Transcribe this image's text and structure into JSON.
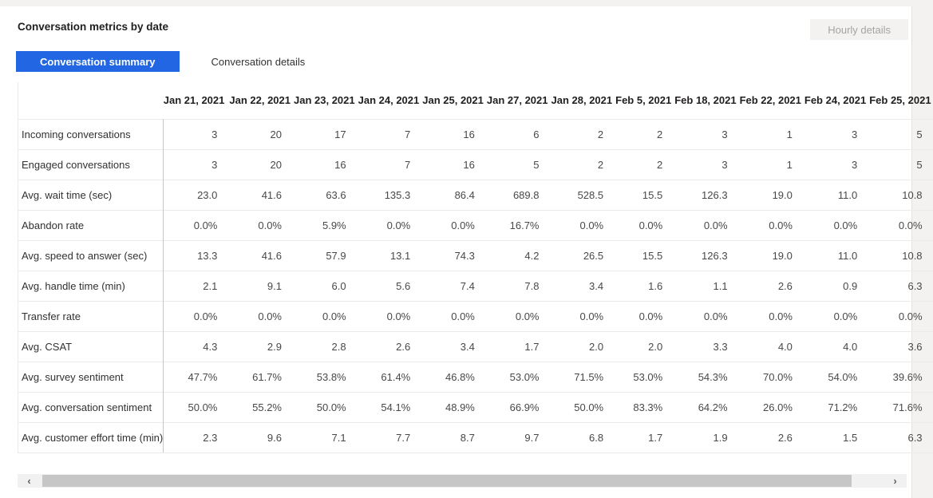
{
  "header": {
    "title": "Conversation metrics by date",
    "hourly_details_label": "Hourly details",
    "tabs": [
      {
        "id": "conversation-summary",
        "label": "Conversation summary",
        "active": true
      },
      {
        "id": "conversation-details",
        "label": "Conversation details",
        "active": false
      }
    ]
  },
  "colors": {
    "accent": "#2266e3",
    "disabled_button_bg": "#f3f2f1",
    "disabled_button_text": "#a6a4a2",
    "row_border": "#edebe9",
    "frozen_divider": "#c8c6c4"
  },
  "icons": {
    "scroll_left": "‹",
    "scroll_right": "›"
  },
  "table": {
    "date_columns": [
      "Jan 21, 2021",
      "Jan 22, 2021",
      "Jan 23, 2021",
      "Jan 24, 2021",
      "Jan 25, 2021",
      "Jan 27, 2021",
      "Jan 28, 2021",
      "Feb 5, 2021",
      "Feb 18, 2021",
      "Feb 22, 2021",
      "Feb 24, 2021",
      "Feb 25, 2021"
    ],
    "rows": [
      {
        "label": "Incoming conversations",
        "values": [
          "3",
          "20",
          "17",
          "7",
          "16",
          "6",
          "2",
          "2",
          "3",
          "1",
          "3",
          "5"
        ]
      },
      {
        "label": "Engaged conversations",
        "values": [
          "3",
          "20",
          "16",
          "7",
          "16",
          "5",
          "2",
          "2",
          "3",
          "1",
          "3",
          "5"
        ]
      },
      {
        "label": "Avg. wait time (sec)",
        "values": [
          "23.0",
          "41.6",
          "63.6",
          "135.3",
          "86.4",
          "689.8",
          "528.5",
          "15.5",
          "126.3",
          "19.0",
          "11.0",
          "10.8"
        ]
      },
      {
        "label": "Abandon rate",
        "values": [
          "0.0%",
          "0.0%",
          "5.9%",
          "0.0%",
          "0.0%",
          "16.7%",
          "0.0%",
          "0.0%",
          "0.0%",
          "0.0%",
          "0.0%",
          "0.0%"
        ]
      },
      {
        "label": "Avg. speed to answer (sec)",
        "values": [
          "13.3",
          "41.6",
          "57.9",
          "13.1",
          "74.3",
          "4.2",
          "26.5",
          "15.5",
          "126.3",
          "19.0",
          "11.0",
          "10.8"
        ]
      },
      {
        "label": "Avg. handle time (min)",
        "values": [
          "2.1",
          "9.1",
          "6.0",
          "5.6",
          "7.4",
          "7.8",
          "3.4",
          "1.6",
          "1.1",
          "2.6",
          "0.9",
          "6.3"
        ]
      },
      {
        "label": "Transfer rate",
        "values": [
          "0.0%",
          "0.0%",
          "0.0%",
          "0.0%",
          "0.0%",
          "0.0%",
          "0.0%",
          "0.0%",
          "0.0%",
          "0.0%",
          "0.0%",
          "0.0%"
        ]
      },
      {
        "label": "Avg. CSAT",
        "values": [
          "4.3",
          "2.9",
          "2.8",
          "2.6",
          "3.4",
          "1.7",
          "2.0",
          "2.0",
          "3.3",
          "4.0",
          "4.0",
          "3.6"
        ]
      },
      {
        "label": "Avg. survey sentiment",
        "values": [
          "47.7%",
          "61.7%",
          "53.8%",
          "61.4%",
          "46.8%",
          "53.0%",
          "71.5%",
          "53.0%",
          "54.3%",
          "70.0%",
          "54.0%",
          "39.6%"
        ]
      },
      {
        "label": "Avg. conversation sentiment",
        "values": [
          "50.0%",
          "55.2%",
          "50.0%",
          "54.1%",
          "48.9%",
          "66.9%",
          "50.0%",
          "83.3%",
          "64.2%",
          "26.0%",
          "71.2%",
          "71.6%"
        ]
      },
      {
        "label": "Avg. customer effort time (min)",
        "values": [
          "2.3",
          "9.6",
          "7.1",
          "7.7",
          "8.7",
          "9.7",
          "6.8",
          "1.7",
          "1.9",
          "2.6",
          "1.5",
          "6.3"
        ]
      }
    ]
  }
}
